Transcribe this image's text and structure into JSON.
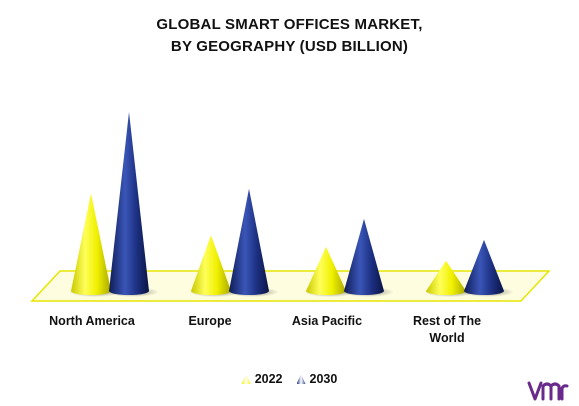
{
  "chart_data": {
    "type": "bar",
    "title_lines": [
      "GLOBAL SMART OFFICES MARKET,",
      "BY GEOGRAPHY (USD BILLION)"
    ],
    "categories": [
      "North America",
      "Europe",
      "Asia Pacific",
      "Rest of The World"
    ],
    "series": [
      {
        "name": "2022",
        "color": "#f2f200",
        "values": [
          42,
          24,
          19,
          13
        ]
      },
      {
        "name": "2030",
        "color": "#1b2f7e",
        "values": [
          77,
          44,
          31,
          22
        ]
      }
    ],
    "ylim": [
      0,
      80
    ],
    "grid": false,
    "legend_position": "bottom",
    "style": "cone-3d"
  },
  "brand": {
    "logo_icon": "vmr-logo-icon",
    "color": "#6a2a8c"
  }
}
